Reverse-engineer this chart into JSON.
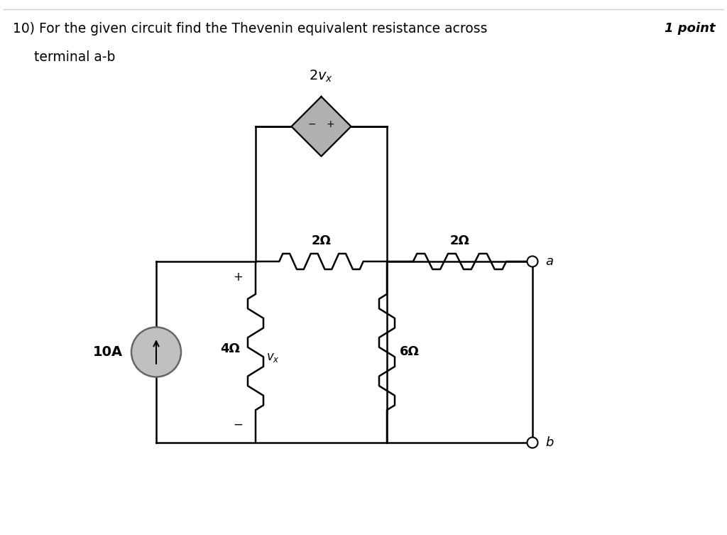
{
  "title_text": "10) For the given circuit find the Thevenin equivalent resistance across",
  "title_line2": "terminal a-b",
  "point_text": "1 point",
  "bg_color": "#ffffff",
  "fig_width": 10.24,
  "fig_height": 7.53,
  "current_source_label": "10A",
  "r1_label": "4Ω",
  "r2_label": "2Ω",
  "r3_label": "2Ω",
  "r4_label": "6Ω",
  "vx_plus": "+",
  "vx_minus": "−",
  "dep_minus": "−",
  "dep_plus": "+",
  "terminal_a": "a",
  "terminal_b": "b",
  "wire_color": "#000000",
  "component_color": "#000000",
  "cs_face_color": "#c0c0c0",
  "cs_edge_color": "#666666",
  "diamond_fill": "#b0b0b0",
  "sep_line_color": "#cccccc",
  "term_circle_color": "#000000"
}
